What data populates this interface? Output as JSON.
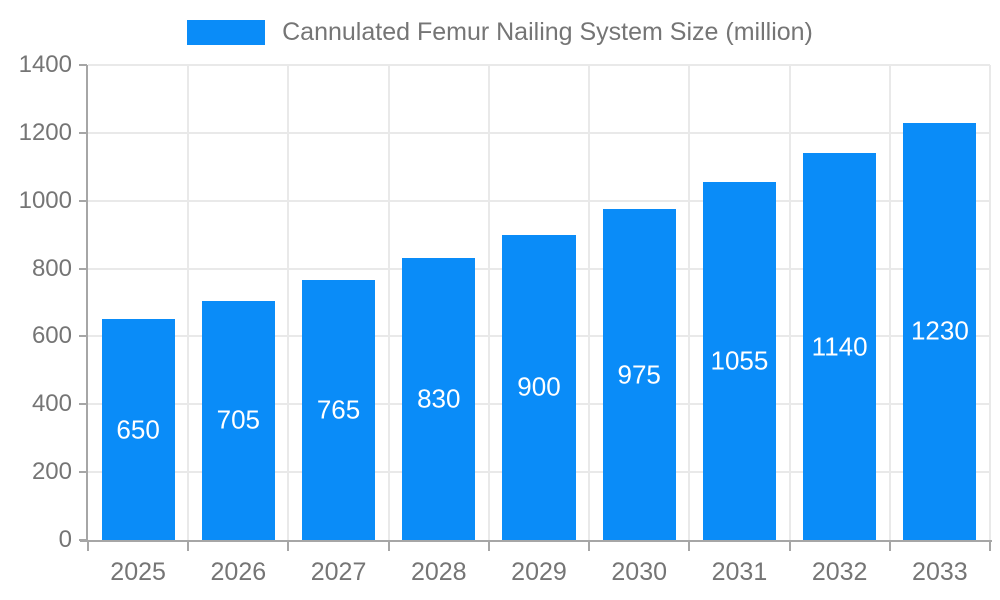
{
  "chart_data": {
    "type": "bar",
    "title": "Cannulated Femur Nailing System Size (million)",
    "categories": [
      "2025",
      "2026",
      "2027",
      "2028",
      "2029",
      "2030",
      "2031",
      "2032",
      "2033"
    ],
    "values": [
      650,
      705,
      765,
      830,
      900,
      975,
      1055,
      1140,
      1230
    ],
    "xlabel": "",
    "ylabel": "",
    "ylim": [
      0,
      1400
    ],
    "yticks": [
      0,
      200,
      400,
      600,
      800,
      1000,
      1200,
      1400
    ],
    "grid": true,
    "legend_position": "top-center",
    "bar_labels_inside": true,
    "colors": {
      "bar": "#0a8cf8",
      "bar_label": "#ffffff",
      "axis_line": "#a6a6a6",
      "gridline": "#e9e9e9",
      "axis_text": "#757575"
    }
  },
  "legend": {
    "label": "Cannulated Femur Nailing System Size (million)",
    "swatch_color": "#0a8cf8"
  }
}
